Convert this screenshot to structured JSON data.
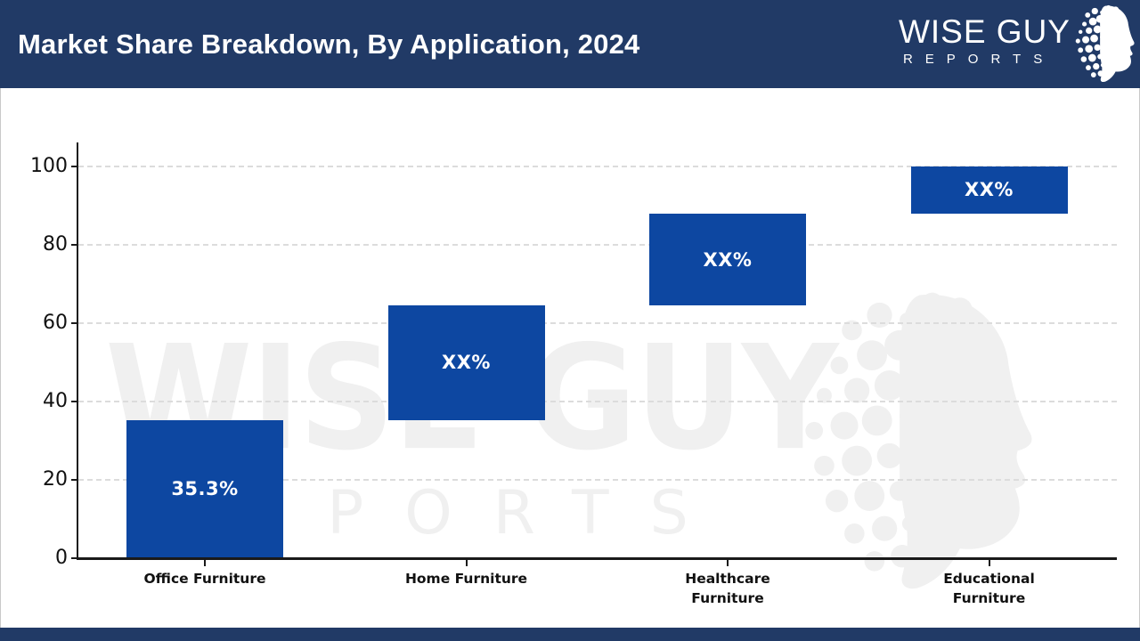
{
  "header": {
    "title": "Market Share Breakdown, By Application, 2024"
  },
  "logo": {
    "name": "WISE GUY",
    "tagline": "REPORTS"
  },
  "watermark": {
    "name": "WISE GUY",
    "tagline": "REPORTS"
  },
  "colors": {
    "header_bg": "#213A66",
    "footer_bg": "#213A66",
    "bar": "#0D47A1",
    "bar_label": "#FFFFFF",
    "grid": "#DCDCDC",
    "axis": "#1A1A1A",
    "watermark": "#F0F0F0"
  },
  "chart_data": {
    "type": "bar",
    "variant": "floating-waterfall",
    "title": "Market Share Breakdown, By Application, 2024",
    "categories": [
      "Office Furniture",
      "Home Furniture",
      "Healthcare Furniture",
      "Educational Furniture"
    ],
    "category_lines": [
      [
        "Office Furniture"
      ],
      [
        "Home Furniture"
      ],
      [
        "Healthcare",
        "Furniture"
      ],
      [
        "Educational",
        "Furniture"
      ]
    ],
    "segments": [
      [
        0,
        35.3
      ],
      [
        35.3,
        64.5
      ],
      [
        64.5,
        87.8
      ],
      [
        87.8,
        100
      ]
    ],
    "bar_labels": [
      "35.3%",
      "XX%",
      "XX%",
      "XX%"
    ],
    "yticks": [
      0,
      20,
      40,
      60,
      80,
      100
    ],
    "ylim": [
      0,
      105
    ],
    "xlabel": "",
    "ylabel": "",
    "legend": "none",
    "grid": "horizontal-dashed"
  }
}
